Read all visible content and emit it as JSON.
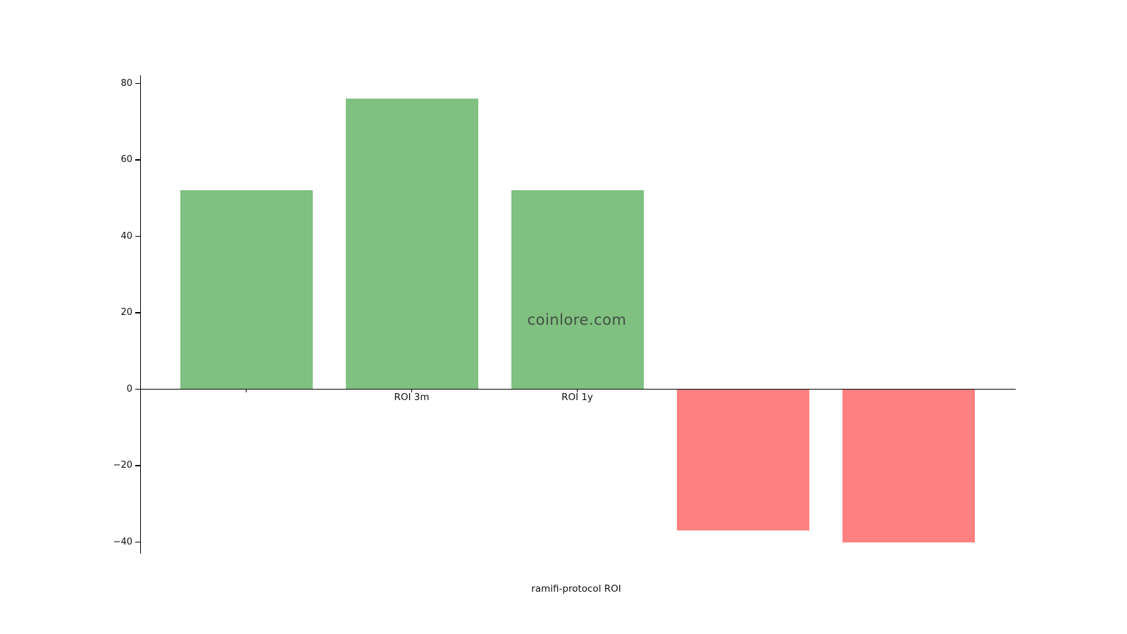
{
  "chart_data": {
    "type": "bar",
    "title": "",
    "xlabel": "ramifi-protocol ROI",
    "ylabel": "",
    "watermark": "coinlore.com",
    "categories": [
      "",
      "ROI 3m",
      "ROI 1y",
      "",
      ""
    ],
    "values": [
      52,
      76,
      52,
      -37,
      -40
    ],
    "bar_colors": [
      "#80c080",
      "#80c080",
      "#80c080",
      "#ff8080",
      "#ff8080"
    ],
    "positive_color": "#80c080",
    "negative_color": "#ff8080",
    "axis_color": "#000000",
    "text_color": "#111111",
    "yticks": [
      {
        "value": 80,
        "label": "80"
      },
      {
        "value": 60,
        "label": "60"
      },
      {
        "value": 40,
        "label": "40"
      },
      {
        "value": 20,
        "label": "20"
      },
      {
        "value": 0,
        "label": "0"
      },
      {
        "value": -20,
        "label": "−20"
      },
      {
        "value": -40,
        "label": "−40"
      }
    ],
    "ylim": [
      -43,
      82
    ],
    "grid": false,
    "legend": null
  }
}
